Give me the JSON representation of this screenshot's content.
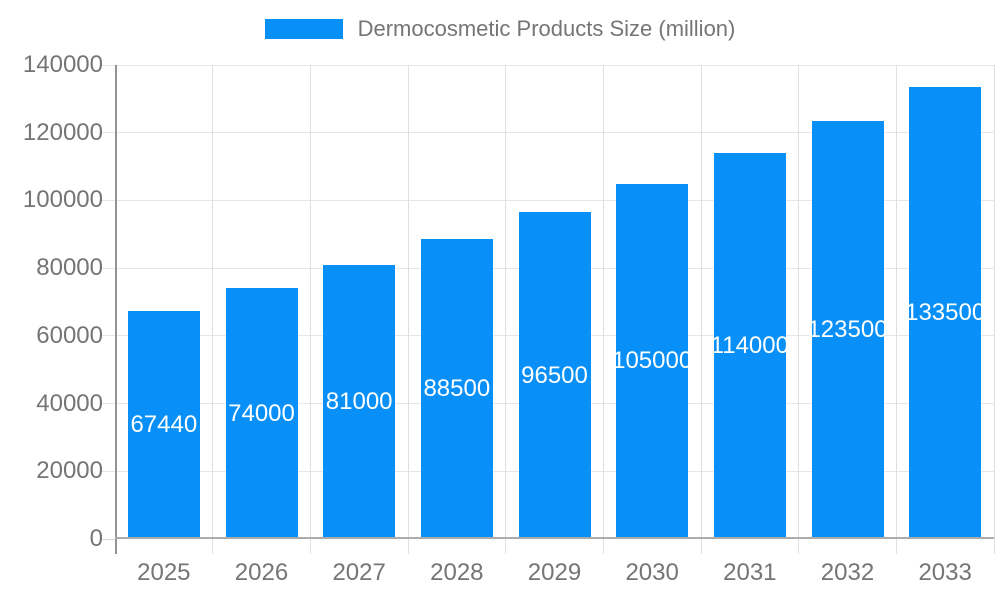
{
  "chart_data": {
    "type": "bar",
    "title": "Dermocosmetic Products Size (million)",
    "legend": {
      "position": "top",
      "entries": [
        {
          "label": "Dermocosmetic Products Size (million)",
          "color": "#0890f8"
        }
      ]
    },
    "categories": [
      "2025",
      "2026",
      "2027",
      "2028",
      "2029",
      "2030",
      "2031",
      "2032",
      "2033"
    ],
    "series": [
      {
        "name": "Dermocosmetic Products Size (million)",
        "values": [
          67440,
          74000,
          81000,
          88500,
          96500,
          105000,
          114000,
          123500,
          133500
        ]
      }
    ],
    "bar_value_labels": [
      "67440",
      "74000",
      "81000",
      "88500",
      "96500",
      "105000",
      "114000",
      "123500",
      "133500"
    ],
    "xlabel": "",
    "ylabel": "",
    "ylim": [
      0,
      140000
    ],
    "yticks": [
      0,
      20000,
      40000,
      60000,
      80000,
      100000,
      120000,
      140000
    ],
    "grid": "horizontal gridlines plus vertical category separators, ticks extend below baseline",
    "colors": {
      "bar": "#0890f8",
      "bar_label_text": "#ffffff",
      "axis_text": "#757575",
      "legend_text": "#757575",
      "gridline": "#e6e6e6",
      "separator": "#e0e0e0",
      "axis_line": "#949494",
      "baseline": "#ababab",
      "background": "#ffffff"
    }
  }
}
